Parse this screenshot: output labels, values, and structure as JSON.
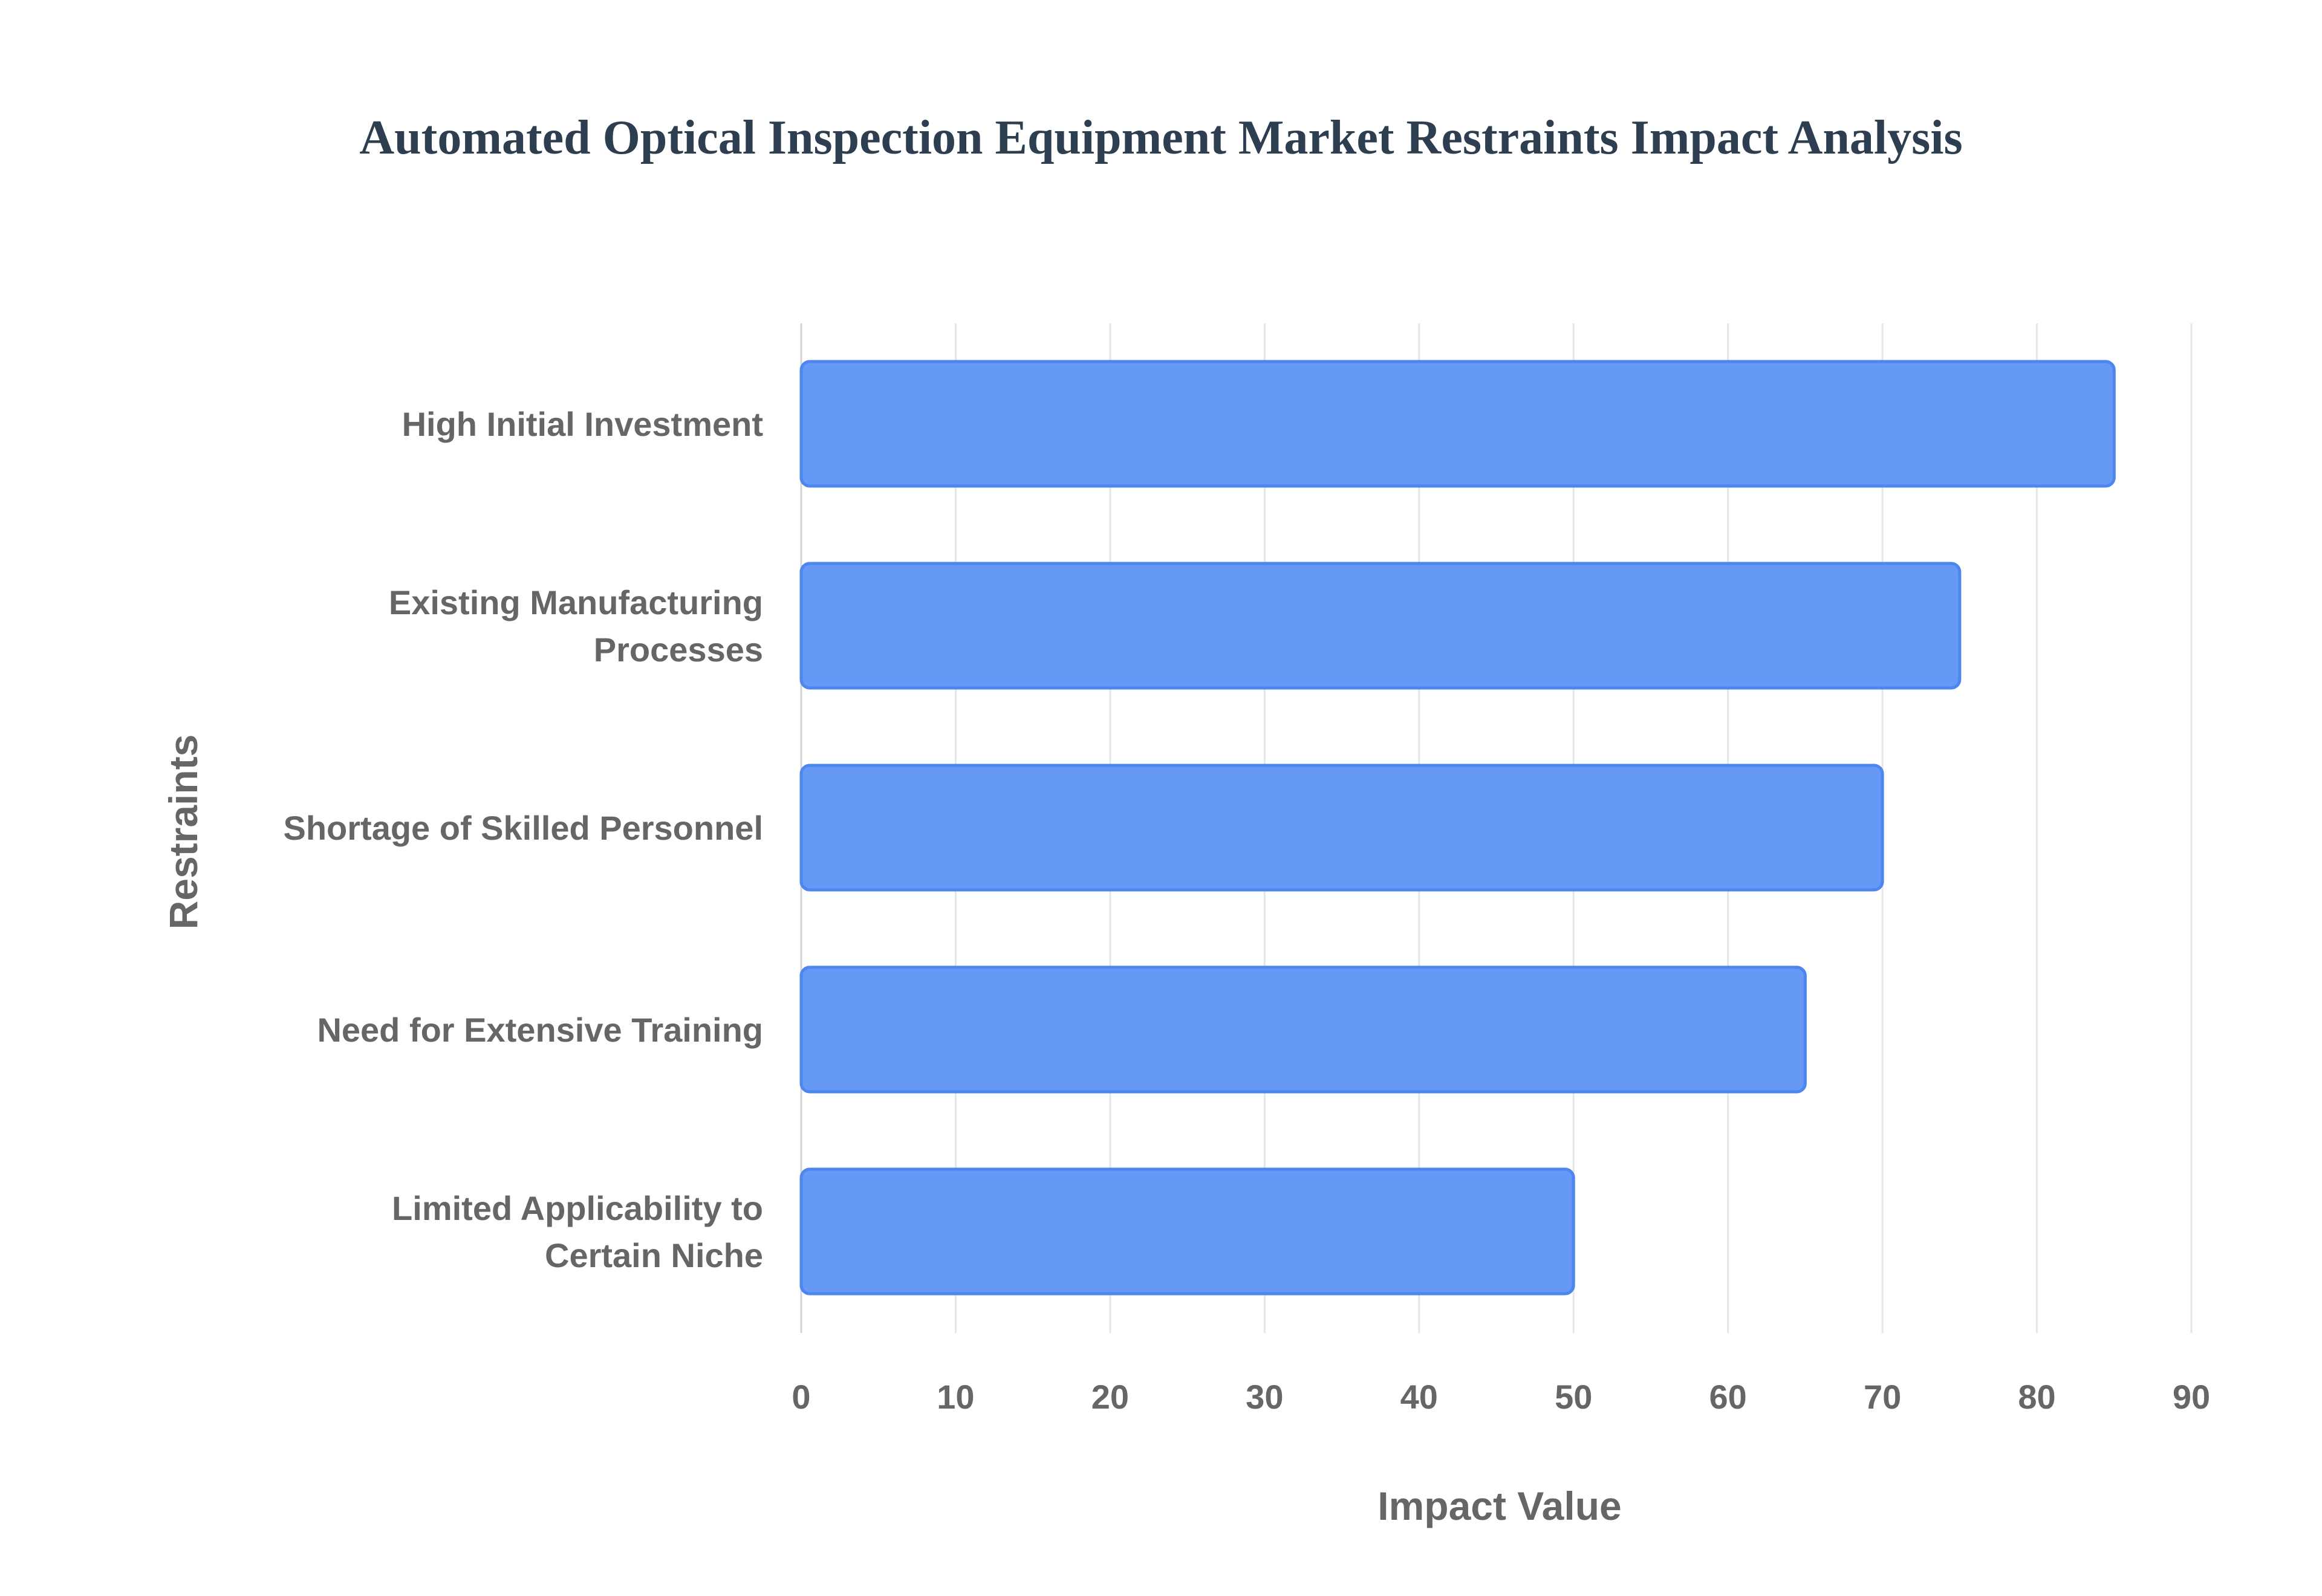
{
  "chart_data": {
    "type": "bar",
    "orientation": "horizontal",
    "title": "Automated Optical Inspection Equipment Market Restraints Impact Analysis",
    "xlabel": "Impact Value",
    "ylabel": "Restraints",
    "categories": [
      [
        "High Initial Investment"
      ],
      [
        "Existing Manufacturing",
        "Processes"
      ],
      [
        "Shortage of Skilled Personnel"
      ],
      [
        "Need for Extensive Training"
      ],
      [
        "Limited Applicability to",
        "Certain Niche"
      ]
    ],
    "values": [
      85,
      75,
      70,
      65,
      50
    ],
    "xlim": [
      0,
      90
    ],
    "xticks": [
      "0",
      "10",
      "20",
      "30",
      "40",
      "50",
      "60",
      "70",
      "80",
      "90"
    ],
    "grid": true,
    "bar_color": "#6699f5",
    "bar_border_color": "#4d86ee",
    "gridline_color": "#e6e6e6"
  }
}
